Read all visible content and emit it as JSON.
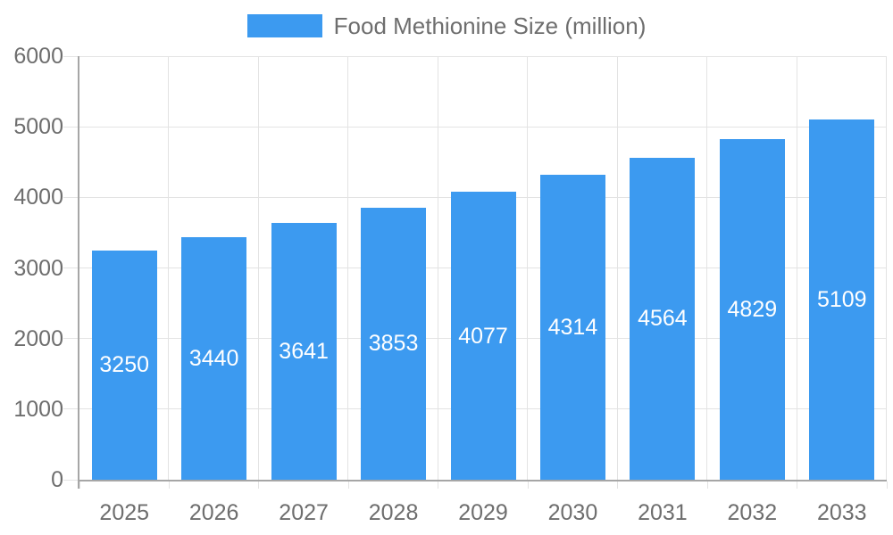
{
  "chart_data": {
    "type": "bar",
    "title": "Food Methionine Size (million)",
    "categories": [
      "2025",
      "2026",
      "2027",
      "2028",
      "2029",
      "2030",
      "2031",
      "2032",
      "2033"
    ],
    "series": [
      {
        "name": "Food Methionine Size (million)",
        "values": [
          3250,
          3440,
          3641,
          3853,
          4077,
          4314,
          4564,
          4829,
          5109
        ]
      }
    ],
    "xlabel": "",
    "ylabel": "",
    "ylim": [
      0,
      6000
    ],
    "ytick_step": 1000,
    "ytick_labels": [
      "0",
      "1000",
      "2000",
      "3000",
      "4000",
      "5000",
      "6000"
    ],
    "grid": "on",
    "legend_position": "top-center",
    "value_labels": "inside-middle",
    "colors": {
      "bar": "#3c9af0",
      "grid": "#e3e3e3",
      "axis": "#a6a6a6",
      "text": "#6e6e6e",
      "value_text": "#ffffff"
    }
  }
}
